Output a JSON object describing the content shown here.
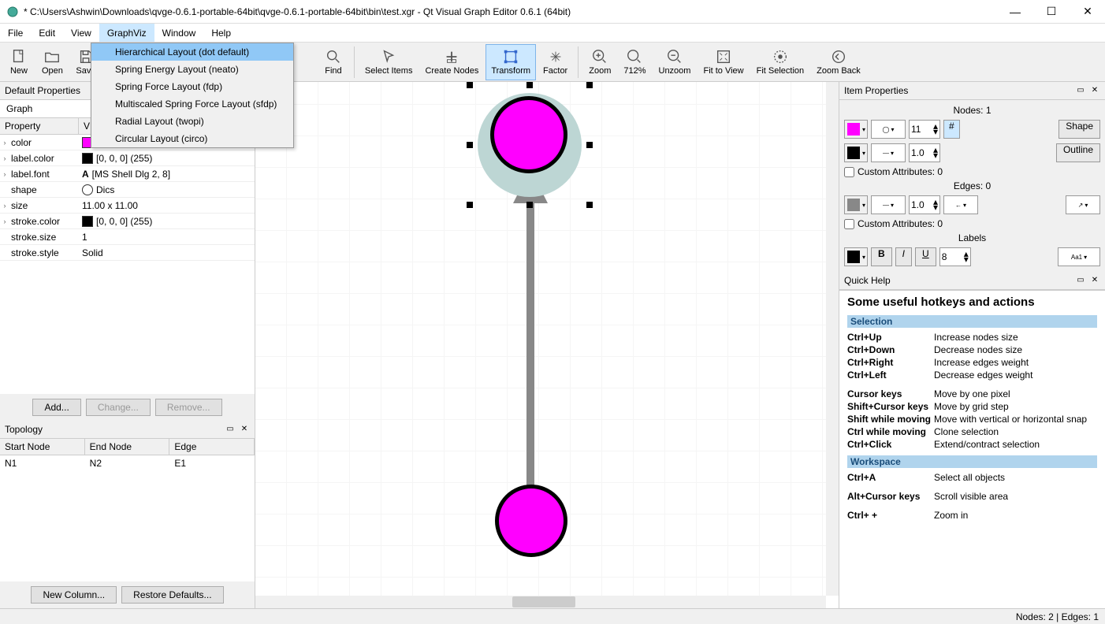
{
  "window": {
    "title": "* C:\\Users\\Ashwin\\Downloads\\qvge-0.6.1-portable-64bit\\qvge-0.6.1-portable-64bit\\bin\\test.xgr - Qt Visual Graph Editor 0.6.1 (64bit)"
  },
  "menu": {
    "items": [
      "File",
      "Edit",
      "View",
      "GraphViz",
      "Window",
      "Help"
    ],
    "active": "GraphViz",
    "dropdown": [
      "Hierarchical Layout (dot default)",
      "Spring Energy Layout (neato)",
      "Spring Force Layout (fdp)",
      "Multiscaled Spring Force Layout (sfdp)",
      "Radial Layout (twopi)",
      "Circular Layout (circo)"
    ]
  },
  "toolbar": {
    "new": "New",
    "open": "Open",
    "save": "Save",
    "find": "Find",
    "select": "Select Items",
    "create": "Create Nodes",
    "transform": "Transform",
    "factor": "Factor",
    "zoom": "Zoom",
    "pct": "712%",
    "unzoom": "Unzoom",
    "fit": "Fit to View",
    "fitsel": "Fit Selection",
    "zoomback": "Zoom Back"
  },
  "defaultprops": {
    "title": "Default Properties",
    "graphtag": "Graph",
    "headers": {
      "prop": "Property",
      "val": "V"
    },
    "rows": [
      {
        "exp": "›",
        "name": "color",
        "swatch": "#ff00ff",
        "val": "[255, 0, 255] (255)"
      },
      {
        "exp": "›",
        "name": "label.color",
        "swatch": "#000000",
        "val": "[0, 0, 0] (255)"
      },
      {
        "exp": "›",
        "name": "label.font",
        "prefix": "A",
        "val": "[MS Shell Dlg 2, 8]"
      },
      {
        "exp": "",
        "name": "shape",
        "circle": true,
        "val": "Dics"
      },
      {
        "exp": "›",
        "name": "size",
        "val": "11.00 x 11.00"
      },
      {
        "exp": "›",
        "name": "stroke.color",
        "swatch": "#000000",
        "val": "[0, 0, 0] (255)"
      },
      {
        "exp": "",
        "name": "stroke.size",
        "val": "1"
      },
      {
        "exp": "",
        "name": "stroke.style",
        "val": "Solid"
      }
    ],
    "buttons": {
      "add": "Add...",
      "change": "Change...",
      "remove": "Remove..."
    }
  },
  "topology": {
    "title": "Topology",
    "headers": {
      "start": "Start Node",
      "end": "End Node",
      "edge": "Edge"
    },
    "rows": [
      {
        "start": "N1",
        "end": "N2",
        "edge": "E1"
      }
    ],
    "buttons": {
      "newcol": "New Column...",
      "restore": "Restore Defaults..."
    }
  },
  "canvas": {
    "node1_color": "#ff00ff",
    "node2_color": "#ff00ff",
    "halo_color": "#bdd6d4",
    "edge_color": "#888888",
    "stroke": "#000000"
  },
  "itemprops": {
    "title": "Item Properties",
    "nodes_label": "Nodes: 1",
    "edges_label": "Edges: 0",
    "labels_label": "Labels",
    "fill_color": "#ff00ff",
    "size_val": "11",
    "hash": "#",
    "shape_btn": "Shape",
    "outline_color": "#000000",
    "outline_w": "1.0",
    "outline_btn": "Outline",
    "edge_color": "#888888",
    "edge_w": "1.0",
    "label_color": "#000000",
    "label_size": "8",
    "font_sel": "Aa1",
    "custom1": "Custom Attributes: 0",
    "custom2": "Custom Attributes: 0"
  },
  "quickhelp": {
    "title": "Quick Help",
    "heading": "Some useful hotkeys and actions",
    "sec1": "Selection",
    "rows1": [
      {
        "k": "Ctrl+Up",
        "v": "Increase nodes size"
      },
      {
        "k": "Ctrl+Down",
        "v": "Decrease nodes size"
      },
      {
        "k": "Ctrl+Right",
        "v": "Increase edges weight"
      },
      {
        "k": "Ctrl+Left",
        "v": "Decrease edges weight"
      }
    ],
    "rows1b": [
      {
        "k": "Cursor keys",
        "v": "Move by one pixel"
      },
      {
        "k": "Shift+Cursor keys",
        "v": "Move by grid step"
      },
      {
        "k": "Shift while moving",
        "v": "Move with vertical or horizontal snap"
      },
      {
        "k": "Ctrl while moving",
        "v": "Clone selection"
      },
      {
        "k": "Ctrl+Click",
        "v": "Extend/contract selection"
      }
    ],
    "sec2": "Workspace",
    "rows2": [
      {
        "k": "Ctrl+A",
        "v": "Select all objects"
      }
    ],
    "rows2b": [
      {
        "k": "Alt+Cursor keys",
        "v": "Scroll visible area"
      }
    ],
    "rows2c": [
      {
        "k": "Ctrl+ +",
        "v": "Zoom in"
      }
    ]
  },
  "status": {
    "text": "Nodes: 2 | Edges: 1"
  }
}
